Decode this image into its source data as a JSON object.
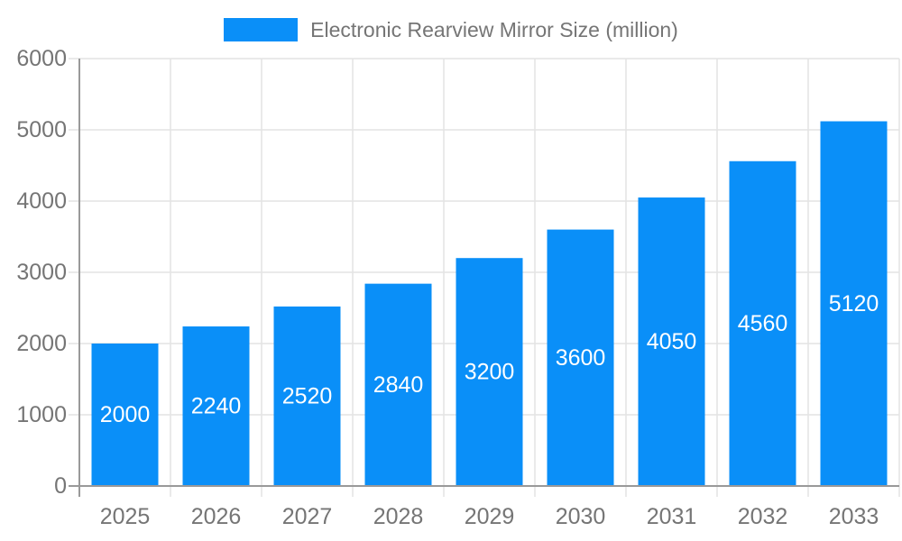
{
  "legend": {
    "label": "Electronic Rearview Mirror Size (million)"
  },
  "colors": {
    "bar": "#0a8ff8",
    "axis_line": "#999999",
    "grid_line": "#e3e3e3",
    "tick_line": "#d0d0d0",
    "axis_text": "#757575",
    "bar_label_text": "#ffffff",
    "background": "#ffffff"
  },
  "chart_data": {
    "type": "bar",
    "title": "Electronic Rearview Mirror Size (million)",
    "categories": [
      "2025",
      "2026",
      "2027",
      "2028",
      "2029",
      "2030",
      "2031",
      "2032",
      "2033"
    ],
    "series": [
      {
        "name": "Electronic Rearview Mirror Size (million)",
        "values": [
          2000,
          2240,
          2520,
          2840,
          3200,
          3600,
          4050,
          4560,
          5120
        ]
      }
    ],
    "bar_labels": [
      2000,
      2240,
      2520,
      2840,
      3200,
      3600,
      4050,
      4560,
      5120
    ],
    "bar_labels_position": "inside-center",
    "xlabel": "",
    "ylabel": "",
    "ylim": [
      0,
      6000
    ],
    "yticks": [
      0,
      1000,
      2000,
      3000,
      4000,
      5000,
      6000
    ],
    "grid": true,
    "legend_position": "top-center"
  }
}
